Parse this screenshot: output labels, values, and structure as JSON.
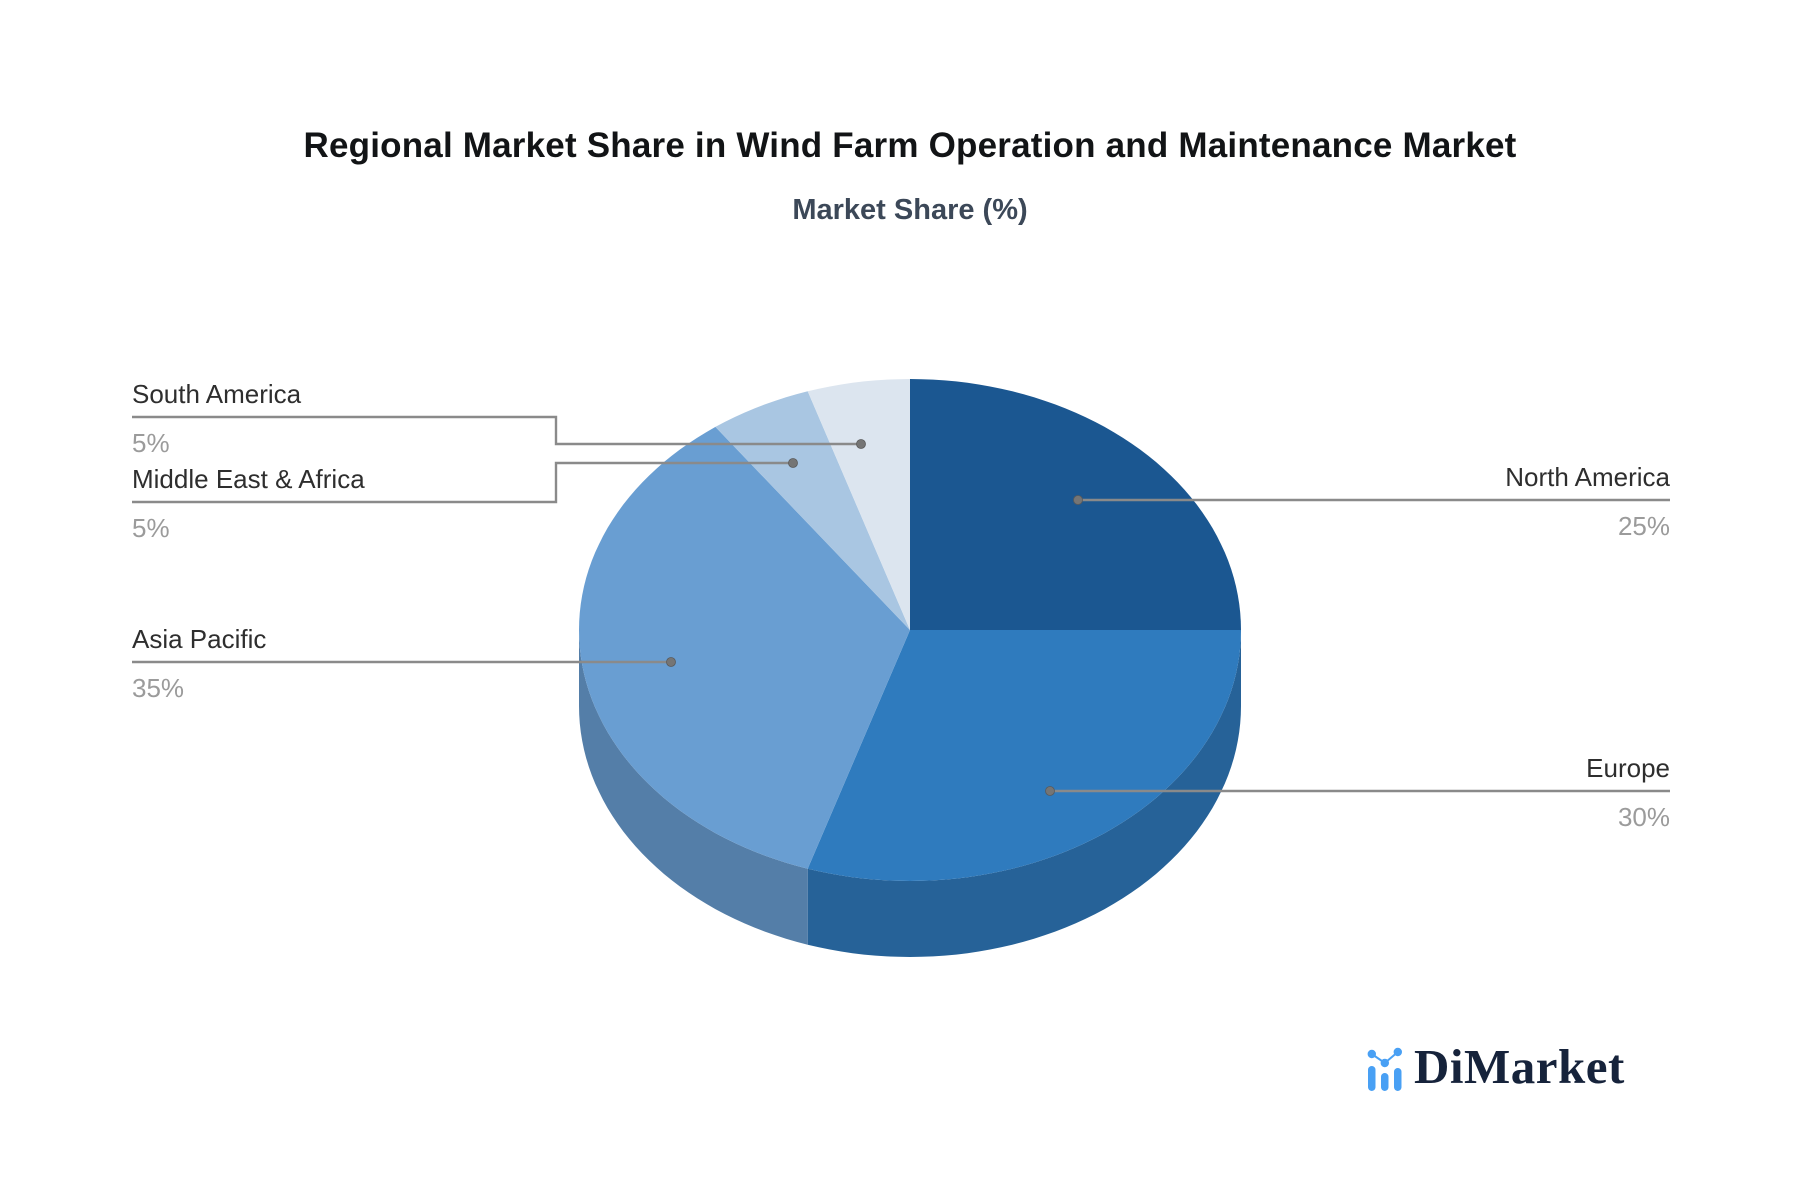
{
  "title": "Regional Market Share in Wind Farm Operation and Maintenance Market",
  "subtitle": "Market Share (%)",
  "brand": {
    "name": "DiMarket",
    "icon": "bar-chart-logo-icon",
    "icon_color": "#49A0F4",
    "text_color": "#16233B"
  },
  "chart_data": {
    "type": "pie",
    "style": "3d",
    "title": "Regional Market Share in Wind Farm Operation and Maintenance Market",
    "subtitle": "Market Share (%)",
    "unit": "%",
    "start_angle": "12-oclock",
    "direction": "clockwise",
    "legend_position": "callout-labels",
    "series": [
      {
        "name": "North America",
        "value": 25,
        "value_label": "25%",
        "color": "#1B5791"
      },
      {
        "name": "Europe",
        "value": 30,
        "value_label": "30%",
        "color": "#2F7BBE"
      },
      {
        "name": "Asia Pacific",
        "value": 35,
        "value_label": "35%",
        "color": "#699ED2"
      },
      {
        "name": "Middle East & Africa",
        "value": 5,
        "value_label": "5%",
        "color": "#A9C6E2"
      },
      {
        "name": "South America",
        "value": 5,
        "value_label": "5%",
        "color": "#DCE5EF"
      }
    ],
    "leader_line_color": "#8a8a8a",
    "leader_dot_color": "#757575",
    "label_text_color": "#2e2e2e",
    "label_value_color": "#9b9b9b"
  }
}
